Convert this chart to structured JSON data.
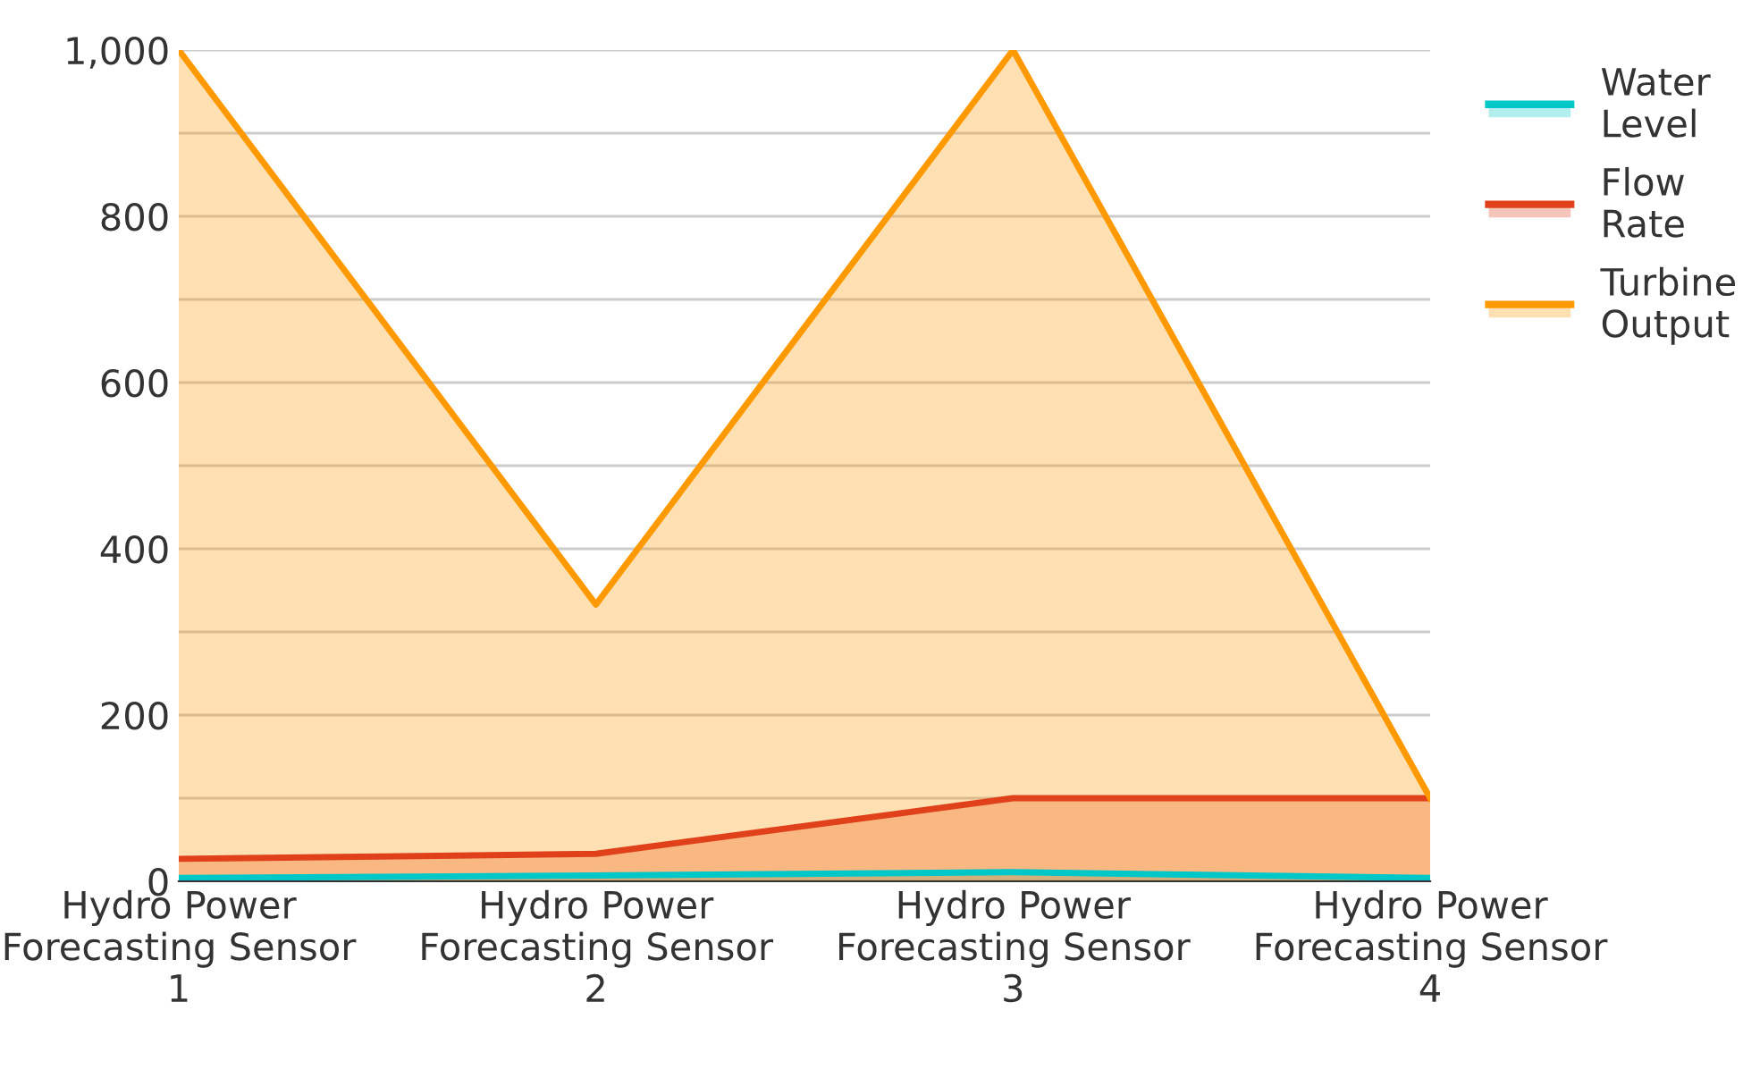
{
  "chart_data": {
    "type": "area",
    "categories": [
      "Hydro Power Forecasting Sensor 1",
      "Hydro Power Forecasting Sensor 2",
      "Hydro Power Forecasting Sensor 3",
      "Hydro Power Forecasting Sensor 4"
    ],
    "series": [
      {
        "name": "Water Level",
        "color": "#00c8c8",
        "values": [
          4,
          7,
          11,
          4
        ]
      },
      {
        "name": "Flow Rate",
        "color": "#e0401a",
        "values": [
          27,
          33,
          100,
          100
        ]
      },
      {
        "name": "Turbine Output",
        "color": "#ff9900",
        "values": [
          1000,
          333,
          1000,
          100
        ]
      }
    ],
    "ylim": [
      0,
      1000
    ],
    "yticks": [
      0,
      {
        "value": 100,
        "label": null
      },
      200,
      {
        "value": 300,
        "label": null
      },
      400,
      {
        "value": 500,
        "label": null
      },
      600,
      {
        "value": 700,
        "label": null
      },
      800,
      {
        "value": 900,
        "label": null
      },
      {
        "value": 1000,
        "label": "1,000"
      }
    ],
    "grid": "y",
    "legend": "top right"
  }
}
